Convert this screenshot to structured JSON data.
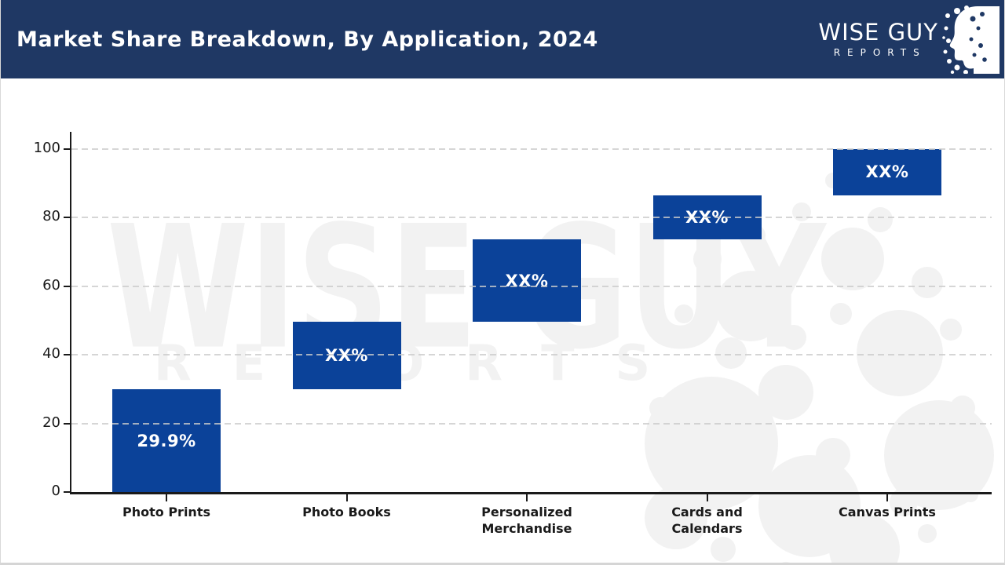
{
  "header": {
    "title": "Market Share Breakdown, By Application, 2024",
    "logo": {
      "line1": "WISE GUY",
      "line2": "REPORTS"
    }
  },
  "watermark": {
    "line1": "WISE GUY",
    "line2": "REPORTS"
  },
  "chart_data": {
    "type": "bar",
    "subtype": "waterfall",
    "title": "Market Share Breakdown, By Application, 2024",
    "categories": [
      "Photo Prints",
      "Photo Books",
      "Personalized Merchandise",
      "Cards and Calendars",
      "Canvas Prints"
    ],
    "category_label_lines": [
      [
        "Photo Prints"
      ],
      [
        "Photo Books"
      ],
      [
        "Personalized",
        "Merchandise"
      ],
      [
        "Cards and",
        "Calendars"
      ],
      [
        "Canvas Prints"
      ]
    ],
    "bars": [
      {
        "category": "Photo Prints",
        "start": 0,
        "end": 29.9,
        "label": "29.9%"
      },
      {
        "category": "Photo Books",
        "start": 29.9,
        "end": 49.5,
        "label": "XX%"
      },
      {
        "category": "Personalized Merchandise",
        "start": 49.5,
        "end": 73.5,
        "label": "XX%"
      },
      {
        "category": "Cards and Calendars",
        "start": 73.5,
        "end": 86.5,
        "label": "XX%"
      },
      {
        "category": "Canvas Prints",
        "start": 86.5,
        "end": 100,
        "label": "XX%"
      }
    ],
    "ylim": [
      0,
      100
    ],
    "yticks": [
      0,
      20,
      40,
      60,
      80,
      100
    ],
    "xlabel": "",
    "ylabel": "",
    "grid": "horizontal-dashed",
    "legend": "none",
    "bar_color": "#0b4299",
    "bar_label_color": "#ffffff",
    "header_color": "#1f3864",
    "gridline_color": "#d9d9d9"
  }
}
